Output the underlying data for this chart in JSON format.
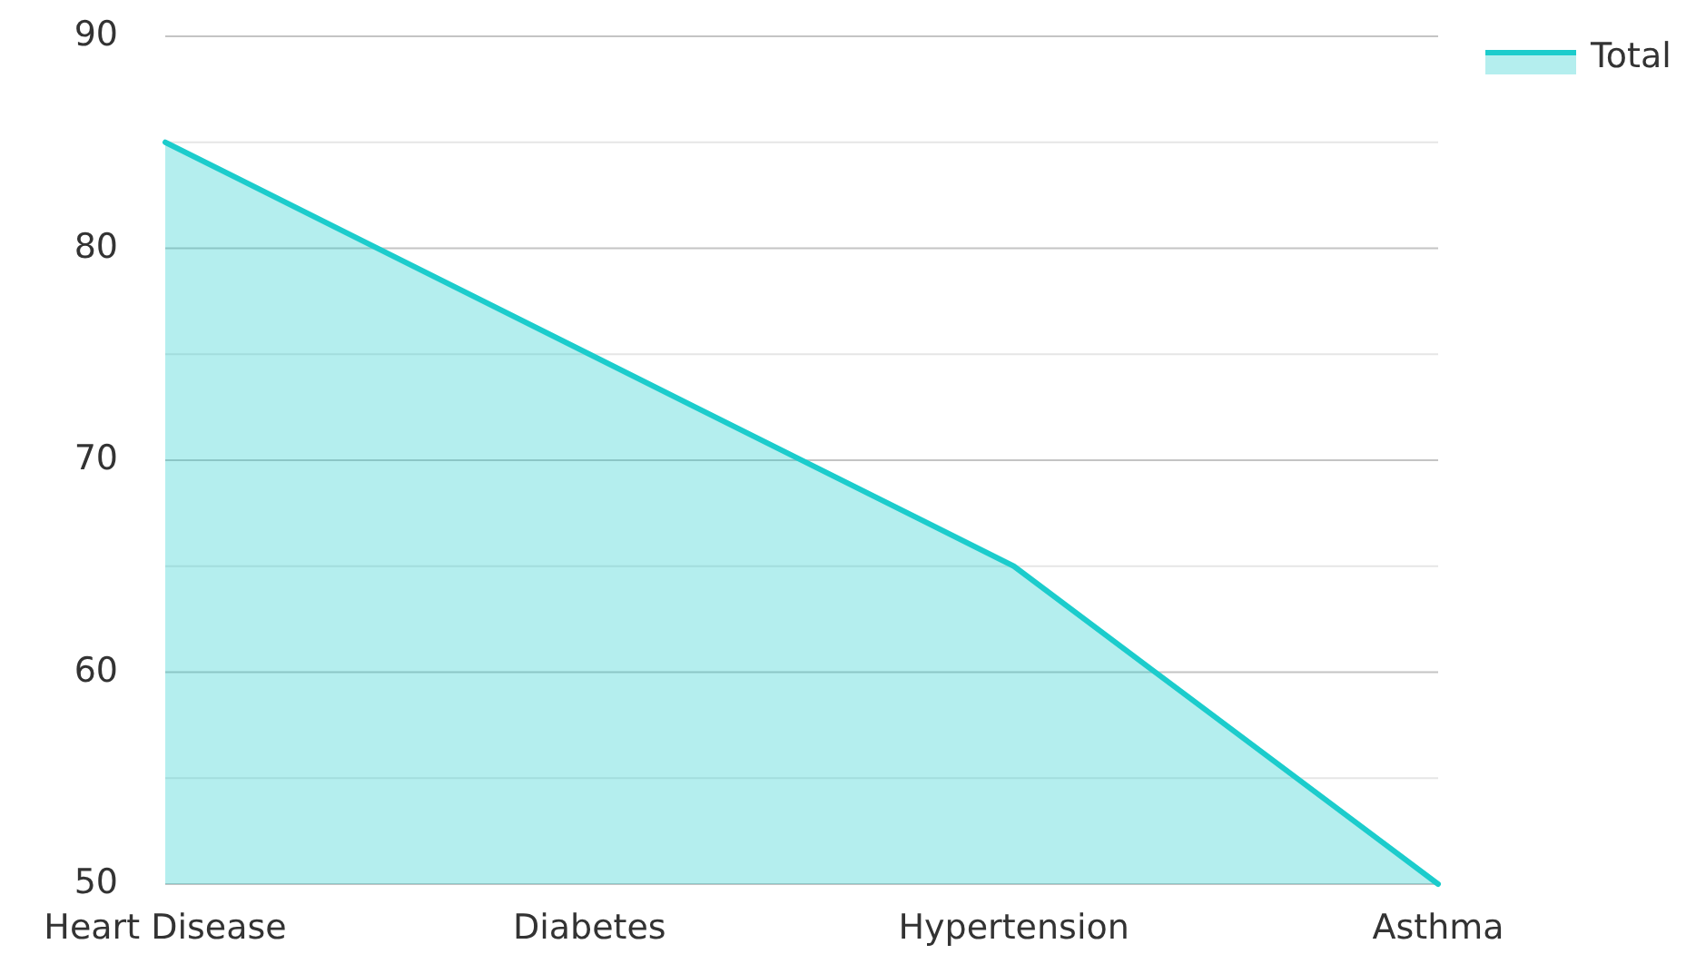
{
  "chart_data": {
    "type": "area",
    "categories": [
      "Heart Disease",
      "Diabetes",
      "Hypertension",
      "Asthma"
    ],
    "series": [
      {
        "name": "Total",
        "color": "#1ccccc",
        "values": [
          85,
          75,
          65,
          50
        ]
      }
    ],
    "ylim": [
      50,
      90
    ],
    "yticks": [
      50,
      {
        "value": 55,
        "label": null
      },
      60,
      {
        "value": 65,
        "label": null
      },
      70,
      {
        "value": 75,
        "label": null
      },
      80,
      {
        "value": 85,
        "label": null
      },
      90
    ],
    "grid": "y",
    "legend": "top right"
  }
}
